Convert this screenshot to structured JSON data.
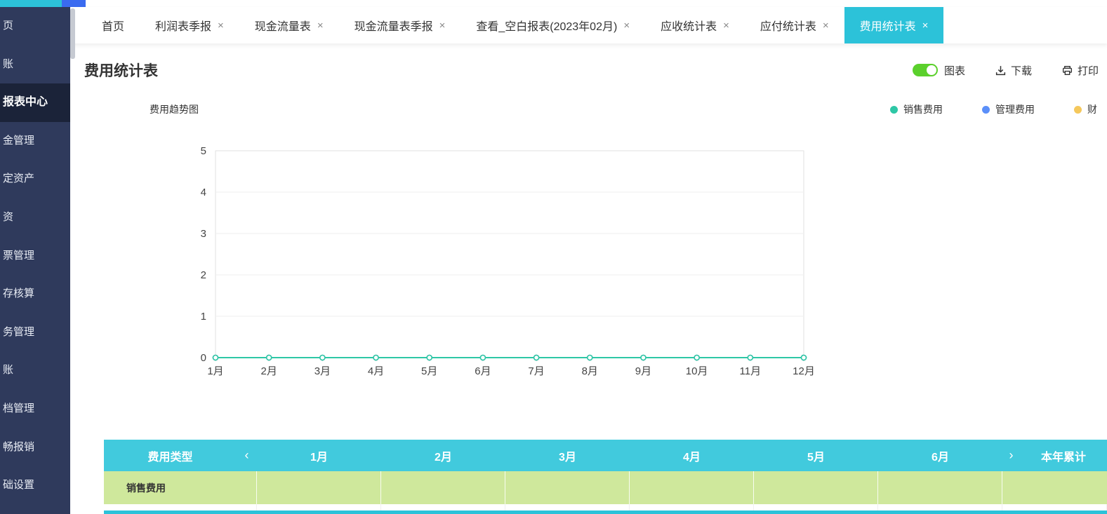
{
  "colors": {
    "accent_cyan": "#2cc2d9",
    "table_header_cyan": "#41cadd",
    "sidebar_bg": "#2f3a5c",
    "sidebar_active_bg": "#1b2339",
    "strip_blue": "#3a6bf0",
    "toggle_green": "#5bd02c",
    "row_green": "#cfe89c",
    "series_teal": "#2ec7a6",
    "series_blue": "#5b8ff9",
    "series_yellow": "#f5c85c"
  },
  "sidebar": {
    "items": [
      {
        "label": "页",
        "active": false
      },
      {
        "label": "账",
        "active": false
      },
      {
        "label": "报表中心",
        "active": true
      },
      {
        "label": "金管理",
        "active": false
      },
      {
        "label": "定资产",
        "active": false
      },
      {
        "label": "资",
        "active": false
      },
      {
        "label": "票管理",
        "active": false
      },
      {
        "label": "存核算",
        "active": false
      },
      {
        "label": "务管理",
        "active": false
      },
      {
        "label": "账",
        "active": false
      },
      {
        "label": "档管理",
        "active": false
      },
      {
        "label": "畅报销",
        "active": false
      },
      {
        "label": "础设置",
        "active": false
      }
    ]
  },
  "tabs": [
    {
      "label": "首页",
      "closable": false,
      "active": false
    },
    {
      "label": "利润表季报",
      "closable": true,
      "active": false
    },
    {
      "label": "现金流量表",
      "closable": true,
      "active": false
    },
    {
      "label": "现金流量表季报",
      "closable": true,
      "active": false
    },
    {
      "label": "查看_空白报表(2023年02月)",
      "closable": true,
      "active": false
    },
    {
      "label": "应收统计表",
      "closable": true,
      "active": false
    },
    {
      "label": "应付统计表",
      "closable": true,
      "active": false
    },
    {
      "label": "费用统计表",
      "closable": true,
      "active": true
    }
  ],
  "page": {
    "title": "费用统计表",
    "toolbar": {
      "chart_toggle_label": "图表",
      "toggle_on": true,
      "download_label": "下载",
      "print_label": "打印"
    }
  },
  "chart_data": {
    "type": "line",
    "title": "费用趋势图",
    "categories": [
      "1月",
      "2月",
      "3月",
      "4月",
      "5月",
      "6月",
      "7月",
      "8月",
      "9月",
      "10月",
      "11月",
      "12月"
    ],
    "series": [
      {
        "name": "销售费用",
        "color": "#2ec7a6",
        "values": [
          0,
          0,
          0,
          0,
          0,
          0,
          0,
          0,
          0,
          0,
          0,
          0
        ]
      },
      {
        "name": "管理费用",
        "color": "#5b8ff9",
        "values": [
          0,
          0,
          0,
          0,
          0,
          0,
          0,
          0,
          0,
          0,
          0,
          0
        ]
      },
      {
        "name": "财",
        "color": "#f5c85c",
        "values": [
          0,
          0,
          0,
          0,
          0,
          0,
          0,
          0,
          0,
          0,
          0,
          0
        ]
      }
    ],
    "ylim": [
      0,
      5
    ],
    "yticks": [
      0,
      1,
      2,
      3,
      4,
      5
    ],
    "grid": true,
    "legend_position": "top-right"
  },
  "table": {
    "header": {
      "type_col": "费用类型",
      "prev_icon": "‹",
      "next_icon": "›",
      "months": [
        "1月",
        "2月",
        "3月",
        "4月",
        "5月",
        "6月"
      ],
      "total_col": "本年累计"
    },
    "rows": [
      {
        "type": "销售费用",
        "values": [
          "",
          "",
          "",
          "",
          "",
          "",
          ""
        ]
      }
    ]
  }
}
